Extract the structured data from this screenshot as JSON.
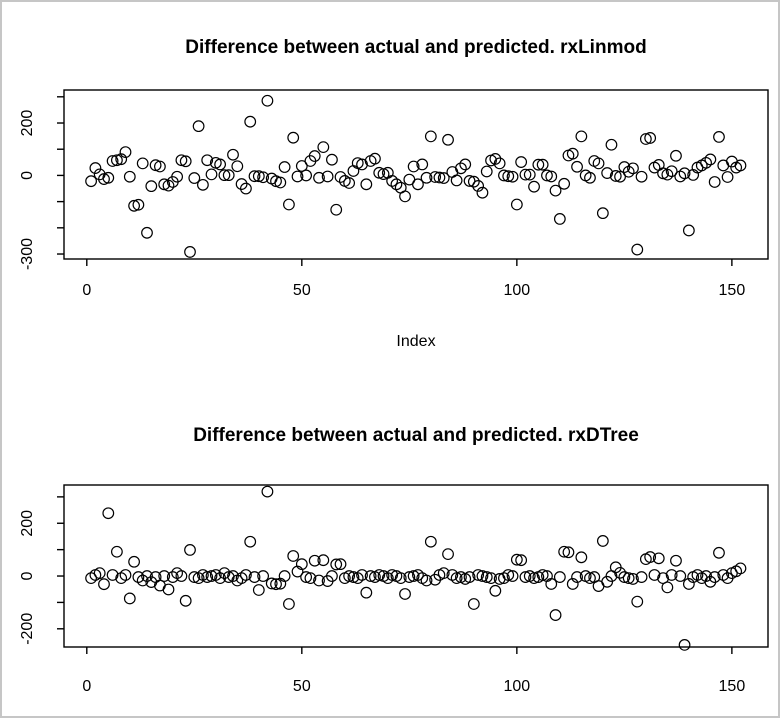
{
  "page": {
    "background_color": "#ffffff",
    "border_color": "#c6c6c6"
  },
  "chart_data": [
    {
      "type": "scatter",
      "title": "Difference between actual and predicted. rxLinmod",
      "xlabel": "Index",
      "ylabel": "",
      "marker": "open-circle",
      "grid": false,
      "xlim": [
        -5.3,
        158.4
      ],
      "ylim": [
        -319,
        326
      ],
      "x_ticks": [
        0,
        50,
        100,
        150
      ],
      "y_ticks": [
        300,
        200,
        100,
        0,
        -100,
        -200,
        -300
      ],
      "y_tick_labels_shown": [
        [
          200,
          "200"
        ],
        [
          0,
          "0"
        ],
        [
          -300,
          "-300"
        ]
      ],
      "x_description": "Index 1..152",
      "values": [
        -22,
        28,
        4,
        -14,
        -9,
        55,
        58,
        62,
        89,
        -5,
        -116,
        -112,
        46,
        -219,
        -41,
        39,
        34,
        -34,
        -39,
        -25,
        -5,
        58,
        54,
        -292,
        -10,
        188,
        -36,
        58,
        4,
        48,
        42,
        1,
        1,
        79,
        35,
        -33,
        -50,
        205,
        -3,
        -3,
        -7,
        285,
        -12,
        -22,
        -27,
        32,
        -111,
        144,
        -4,
        36,
        0,
        55,
        74,
        -9,
        108,
        -4,
        60,
        -131,
        -6,
        -21,
        -29,
        17,
        47,
        42,
        -34,
        55,
        64,
        10,
        5,
        10,
        -21,
        -34,
        -47,
        -80,
        -16,
        34,
        -34,
        42,
        -9,
        149,
        -6,
        -8,
        -10,
        136,
        13,
        -19,
        27,
        42,
        -21,
        -24,
        -40,
        -66,
        15,
        57,
        63,
        46,
        0,
        -3,
        -5,
        -111,
        51,
        3,
        3,
        -43,
        41,
        41,
        0,
        -4,
        -58,
        -166,
        -32,
        76,
        83,
        33,
        149,
        0,
        -9,
        55,
        46,
        -144,
        9,
        117,
        -2,
        -5,
        32,
        14,
        27,
        -283,
        -5,
        139,
        143,
        30,
        40,
        8,
        3,
        16,
        75,
        -4,
        8,
        -210,
        2,
        30,
        38,
        48,
        61,
        -25,
        147,
        38,
        -6,
        53,
        30,
        38
      ]
    },
    {
      "type": "scatter",
      "title": "Difference between actual and predicted. rxDTree",
      "xlabel": "",
      "ylabel": "",
      "marker": "open-circle",
      "grid": false,
      "xlim": [
        -5.3,
        158.4
      ],
      "ylim": [
        -269,
        345
      ],
      "x_ticks": [
        0,
        50,
        100,
        150
      ],
      "y_ticks": [
        300,
        200,
        100,
        0,
        -100,
        -200
      ],
      "y_tick_labels_shown": [
        [
          200,
          "200"
        ],
        [
          0,
          "0"
        ],
        [
          -200,
          "-200"
        ]
      ],
      "x_description": "Index 1..152",
      "values": [
        -8,
        4,
        11,
        -31,
        238,
        4,
        92,
        -8,
        4,
        -85,
        54,
        -4,
        -17,
        0,
        -23,
        -4,
        -36,
        0,
        -51,
        -4,
        11,
        0,
        -94,
        99,
        -4,
        -8,
        4,
        -4,
        0,
        4,
        -8,
        11,
        -4,
        0,
        -17,
        -8,
        4,
        130,
        -4,
        -53,
        0,
        320,
        -28,
        -31,
        -29,
        0,
        -106,
        76,
        17,
        45,
        -4,
        -8,
        58,
        -17,
        60,
        -19,
        0,
        44,
        45,
        -8,
        0,
        -4,
        -8,
        4,
        -63,
        0,
        -4,
        4,
        0,
        -8,
        4,
        0,
        -8,
        -68,
        -4,
        0,
        4,
        -8,
        -17,
        130,
        -14,
        4,
        11,
        83,
        4,
        -8,
        -4,
        -11,
        -4,
        -106,
        4,
        0,
        -4,
        -8,
        -56,
        -11,
        -8,
        4,
        0,
        62,
        60,
        -4,
        0,
        -8,
        -4,
        4,
        0,
        -30,
        -148,
        -4,
        92,
        90,
        -30,
        -4,
        71,
        0,
        -8,
        -4,
        -38,
        133,
        -22,
        0,
        33,
        12,
        -4,
        -8,
        -11,
        -97,
        -4,
        64,
        72,
        4,
        67,
        -8,
        -43,
        4,
        58,
        0,
        -261,
        -30,
        -4,
        4,
        -8,
        0,
        -22,
        -4,
        88,
        4,
        -8,
        11,
        18,
        29
      ]
    }
  ]
}
